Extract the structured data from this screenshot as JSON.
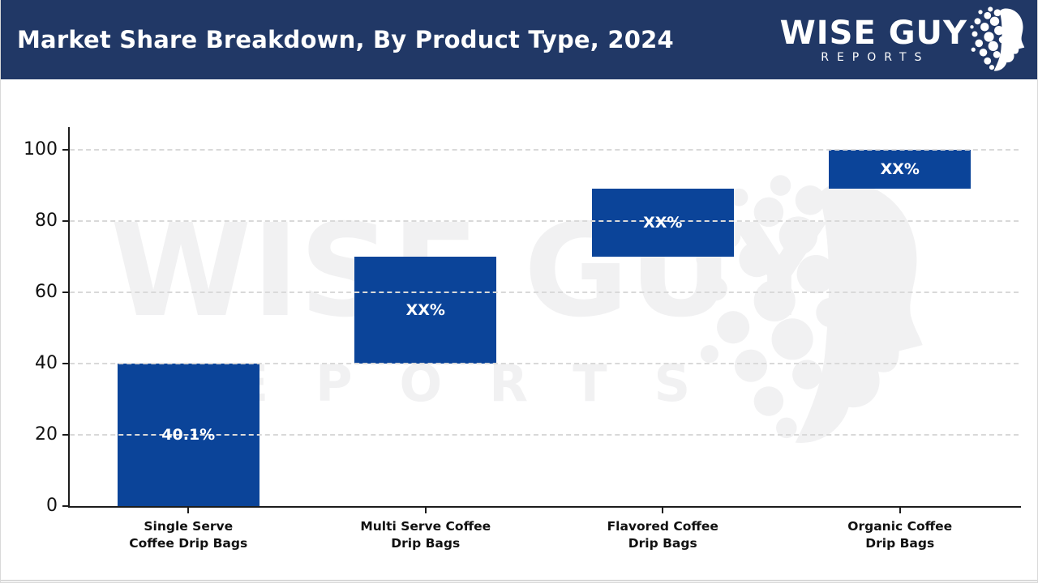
{
  "header": {
    "title": "Market Share Breakdown, By Product Type, 2024",
    "logo": {
      "wordmark": "WISE GUY",
      "subtext": "REPORTS"
    }
  },
  "watermark": {
    "wordmark": "WISE GUY",
    "subtext": "REPORTS"
  },
  "colors": {
    "header_bg": "#213866",
    "bar": "#0b4499",
    "bar_label": "#ffffff",
    "axis": "#1c1c1c",
    "grid": "#d9d9d9",
    "watermark": "#f1f1f2",
    "tick_label": "#111111"
  },
  "chart_data": {
    "type": "bar",
    "variant": "waterfall",
    "title": "Market Share Breakdown, By Product Type, 2024",
    "xlabel": "",
    "ylabel": "",
    "categories": [
      [
        "Single Serve",
        "Coffee Drip Bags"
      ],
      [
        "Multi Serve Coffee",
        "Drip Bags"
      ],
      [
        "Flavored Coffee",
        "Drip Bags"
      ],
      [
        "Organic Coffee",
        "Drip Bags"
      ]
    ],
    "segments": [
      {
        "category": "Single Serve Coffee Drip Bags",
        "start": 0,
        "end": 40.1,
        "label": "40.1%"
      },
      {
        "category": "Multi Serve Coffee Drip Bags",
        "start": 40,
        "end": 70,
        "label": "XX%"
      },
      {
        "category": "Flavored Coffee Drip Bags",
        "start": 70,
        "end": 89,
        "label": "XX%"
      },
      {
        "category": "Organic Coffee Drip Bags",
        "start": 89,
        "end": 100,
        "label": "XX%"
      }
    ],
    "yticks": [
      0,
      20,
      40,
      60,
      80,
      100
    ],
    "ylim": [
      0,
      105
    ],
    "grid": true,
    "grid_style": "dashed",
    "legend": null
  }
}
